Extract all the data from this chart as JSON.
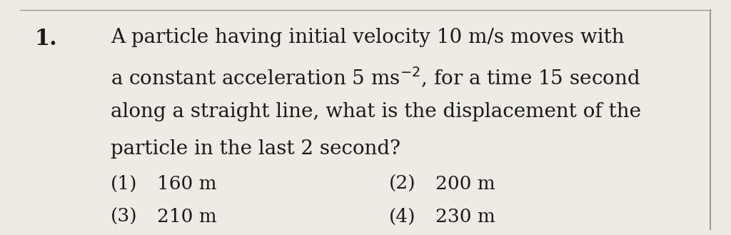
{
  "background_color": "#eeebe5",
  "border_color": "#999999",
  "question_number": "1.",
  "line1": "A particle having initial velocity 10 m/s moves with",
  "line2_part1": "a constant acceleration 5 ms",
  "line2_sup": "-2",
  "line2_part2": ", for a time 15 second",
  "line3": "along a straight line, what is the displacement of the",
  "line4": "particle in the last 2 second?",
  "opt1_num": "(1)",
  "opt1_val": "160 m",
  "opt2_num": "(2)",
  "opt2_val": "200 m",
  "opt3_num": "(3)",
  "opt3_val": "210 m",
  "opt4_num": "(4)",
  "opt4_val": "230 m",
  "text_color": "#1a1a1a",
  "font_size_main": 20,
  "font_size_num": 22,
  "font_size_opt": 19,
  "font_size_sup": 14
}
